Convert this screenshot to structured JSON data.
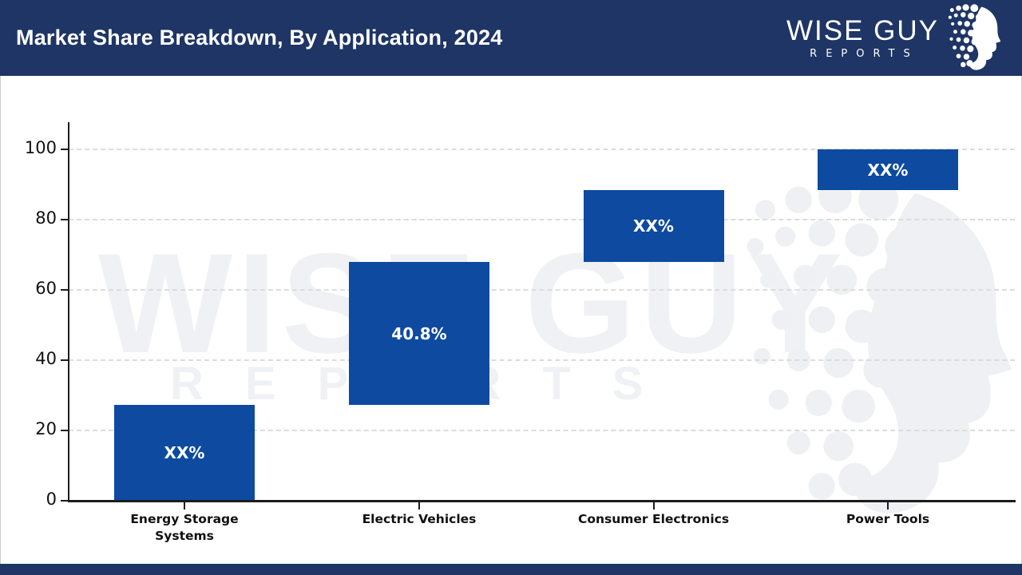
{
  "header": {
    "title": "Market Share Breakdown, By Application, 2024",
    "logo": {
      "line1": "WISE GUY",
      "line2": "REPORTS"
    }
  },
  "watermark": {
    "line1": "WISE GUY",
    "line2": "REPORTS"
  },
  "colors": {
    "header_bg": "#1e3565",
    "bar": "#0d4aa0",
    "grid": "#dcdcdc",
    "axis": "#1c1c1c",
    "watermark": "#f0f1f4",
    "bar_label_text": "#ffffff",
    "title_text": "#ffffff"
  },
  "chart_data": {
    "type": "bar",
    "subtype": "waterfall-breakdown",
    "title": "Market Share Breakdown, By Application, 2024",
    "xlabel": "",
    "ylabel": "",
    "ylim": [
      0,
      105
    ],
    "y_ticks": [
      0,
      20,
      40,
      60,
      80,
      100
    ],
    "grid": "horizontal-dashed",
    "legend": "none",
    "categories": [
      "Energy Storage Systems",
      "Electric Vehicles",
      "Consumer Electronics",
      "Power Tools"
    ],
    "values": [
      27.2,
      40.8,
      20.3,
      11.7
    ],
    "segments": [
      {
        "category": "Energy Storage Systems",
        "start": 0,
        "end": 27.2,
        "label": "XX%"
      },
      {
        "category": "Electric Vehicles",
        "start": 27.2,
        "end": 68.0,
        "label": "40.8%"
      },
      {
        "category": "Consumer Electronics",
        "start": 68.0,
        "end": 88.3,
        "label": "XX%"
      },
      {
        "category": "Power Tools",
        "start": 88.3,
        "end": 100.0,
        "label": "XX%"
      }
    ]
  }
}
